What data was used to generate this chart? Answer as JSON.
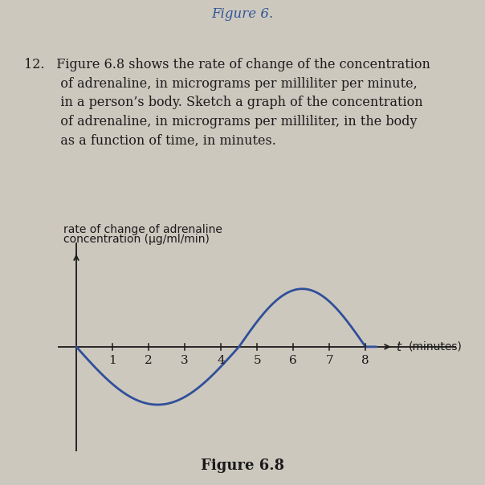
{
  "title_text": "Figure 6.8",
  "ylabel_line1": "rate of change of adrenaline",
  "ylabel_line2": "concentration (μg/ml/min)",
  "xlabel_italic": "t",
  "xlabel_normal": " (minutes)",
  "background_color": "#cdc8be",
  "curve_color": "#2f4f9a",
  "curve_linewidth": 2.0,
  "x_ticks": [
    1,
    2,
    3,
    4,
    5,
    6,
    7,
    8
  ],
  "x_min": -0.1,
  "x_max": 8.5,
  "y_min": -1.5,
  "y_max": 1.5,
  "axis_color": "#1a1a1a",
  "text_color": "#1a1a1a",
  "font_size_label": 10,
  "font_size_title": 13,
  "font_size_ticks": 11,
  "top_text_color": "#1c1c1c",
  "figure_top_text": "Figure 6.",
  "figure_top_color": "#2f5599",
  "question_number": "12.",
  "question_body": "  Figure 6.8 shows the rate of change of the concentration\n   of adrenaline, in micrograms per milliliter per minute,\n   in a person’s body. Sketch a graph of the concentration\n   of adrenaline, in micrograms per milliliter, in the body\n   as a function of time, in minutes.",
  "question_fontsize": 11.5
}
